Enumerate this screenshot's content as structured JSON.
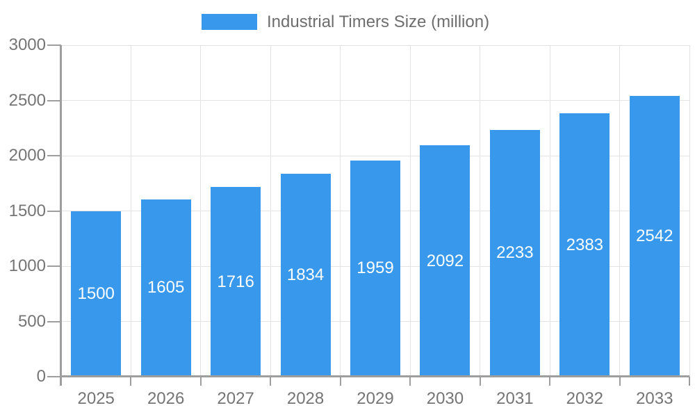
{
  "chart_data": {
    "type": "bar",
    "title": "Industrial Timers Size (million)",
    "legend": {
      "label": "Industrial Timers Size (million)",
      "position": "top"
    },
    "categories": [
      "2025",
      "2026",
      "2027",
      "2028",
      "2029",
      "2030",
      "2031",
      "2032",
      "2033"
    ],
    "values": [
      1500,
      1605,
      1716,
      1834,
      1959,
      2092,
      2233,
      2383,
      2542
    ],
    "value_labels_visible": true,
    "xlabel": "",
    "ylabel": "",
    "ylim": [
      0,
      3000
    ],
    "ytick_step": 500,
    "ytick_labels": [
      "0",
      "500",
      "1000",
      "1500",
      "2000",
      "2500",
      "3000"
    ],
    "grid": true,
    "colors": {
      "bar": "#3898EC",
      "value_label": "#FFFFFF",
      "axis_text": "#757575",
      "legend_text": "#6E6E6E",
      "axis_line": "#9E9E9E",
      "gridline": "#E3E3E3",
      "background": "#FFFFFF"
    }
  }
}
